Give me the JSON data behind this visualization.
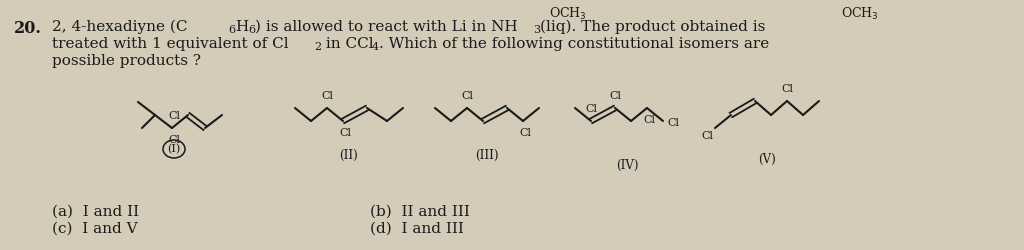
{
  "bg_color": "#d4cbb8",
  "text_color": "#1a1a1a",
  "line_color": "#1a1a1a",
  "q_num": "20.",
  "line1a": "2, 4-hexadiyne (C",
  "line1b": "6",
  "line1c": "H",
  "line1d": "6",
  "line1e": ") is allowed to react with Li in NH",
  "line1f": "3",
  "line1g": "(liq). The product obtained is",
  "line2a": "treated with 1 equivalent of Cl",
  "line2b": "2",
  "line2c": " in CCl",
  "line2d": "4",
  "line2e": ". Which of the following constitutional isomers are",
  "line3": "possible products ?",
  "top1": "OCH",
  "top1sub": "3",
  "top2": "OCH",
  "top2sub": "3",
  "opt_a": "(a)  I and II",
  "opt_b": "(b)  II and III",
  "opt_c": "(c)  I and V",
  "opt_d": "(d)  I and III"
}
